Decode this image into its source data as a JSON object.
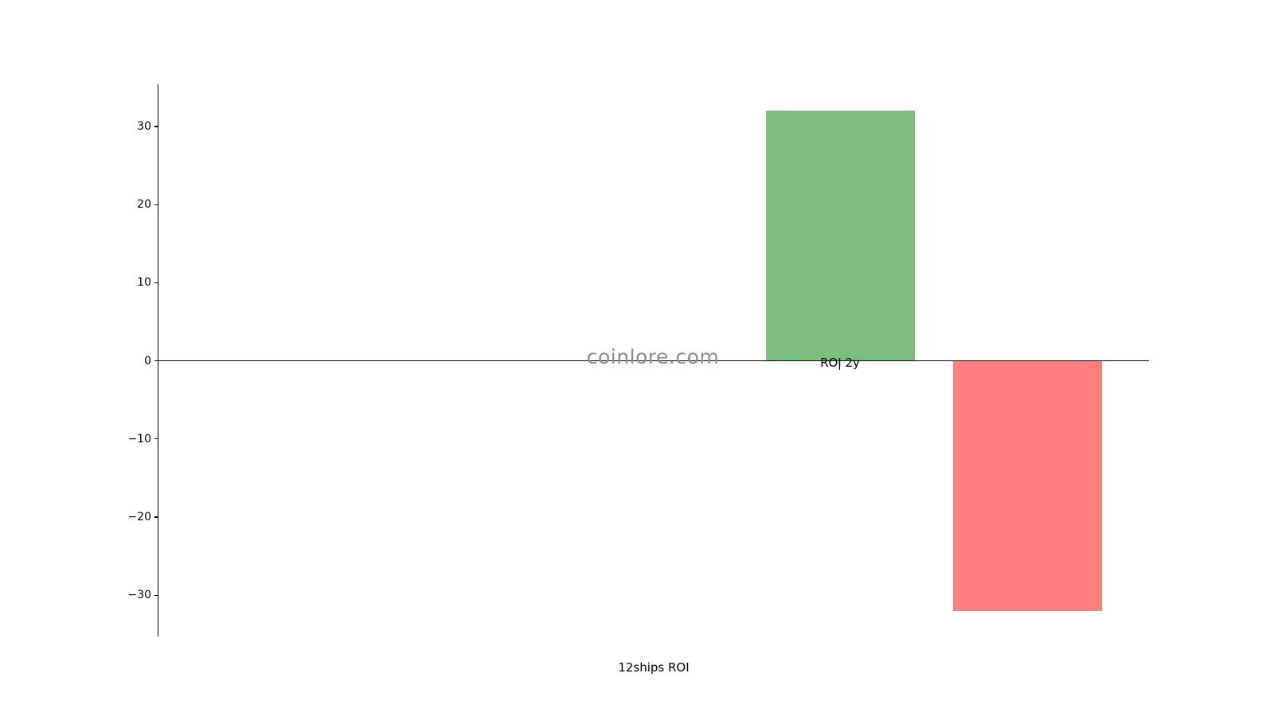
{
  "watermark": {
    "text": "coinlore.com",
    "color": "#8c8c8c"
  },
  "x_axis_title": "12ships ROI",
  "chart_data": {
    "type": "bar",
    "categories": [
      "ROI 2y",
      ""
    ],
    "values": [
      32,
      -32
    ],
    "bar_colors": [
      "#7dbe7e",
      "#ff7f7f"
    ],
    "title": "",
    "xlabel": "12ships ROI",
    "ylabel": "",
    "ylim": [
      -35.4,
      35.4
    ],
    "yticks": [
      30,
      20,
      10,
      0,
      -10,
      -20,
      -30
    ],
    "ytick_labels": [
      "30",
      "20",
      "10",
      "0",
      "−10",
      "−20",
      "−30"
    ],
    "grid": false,
    "legend": false,
    "axis_color": "#000000",
    "positive_color": "#7dbe7e",
    "negative_color": "#ff7f7f",
    "watermark": "coinlore.com"
  }
}
